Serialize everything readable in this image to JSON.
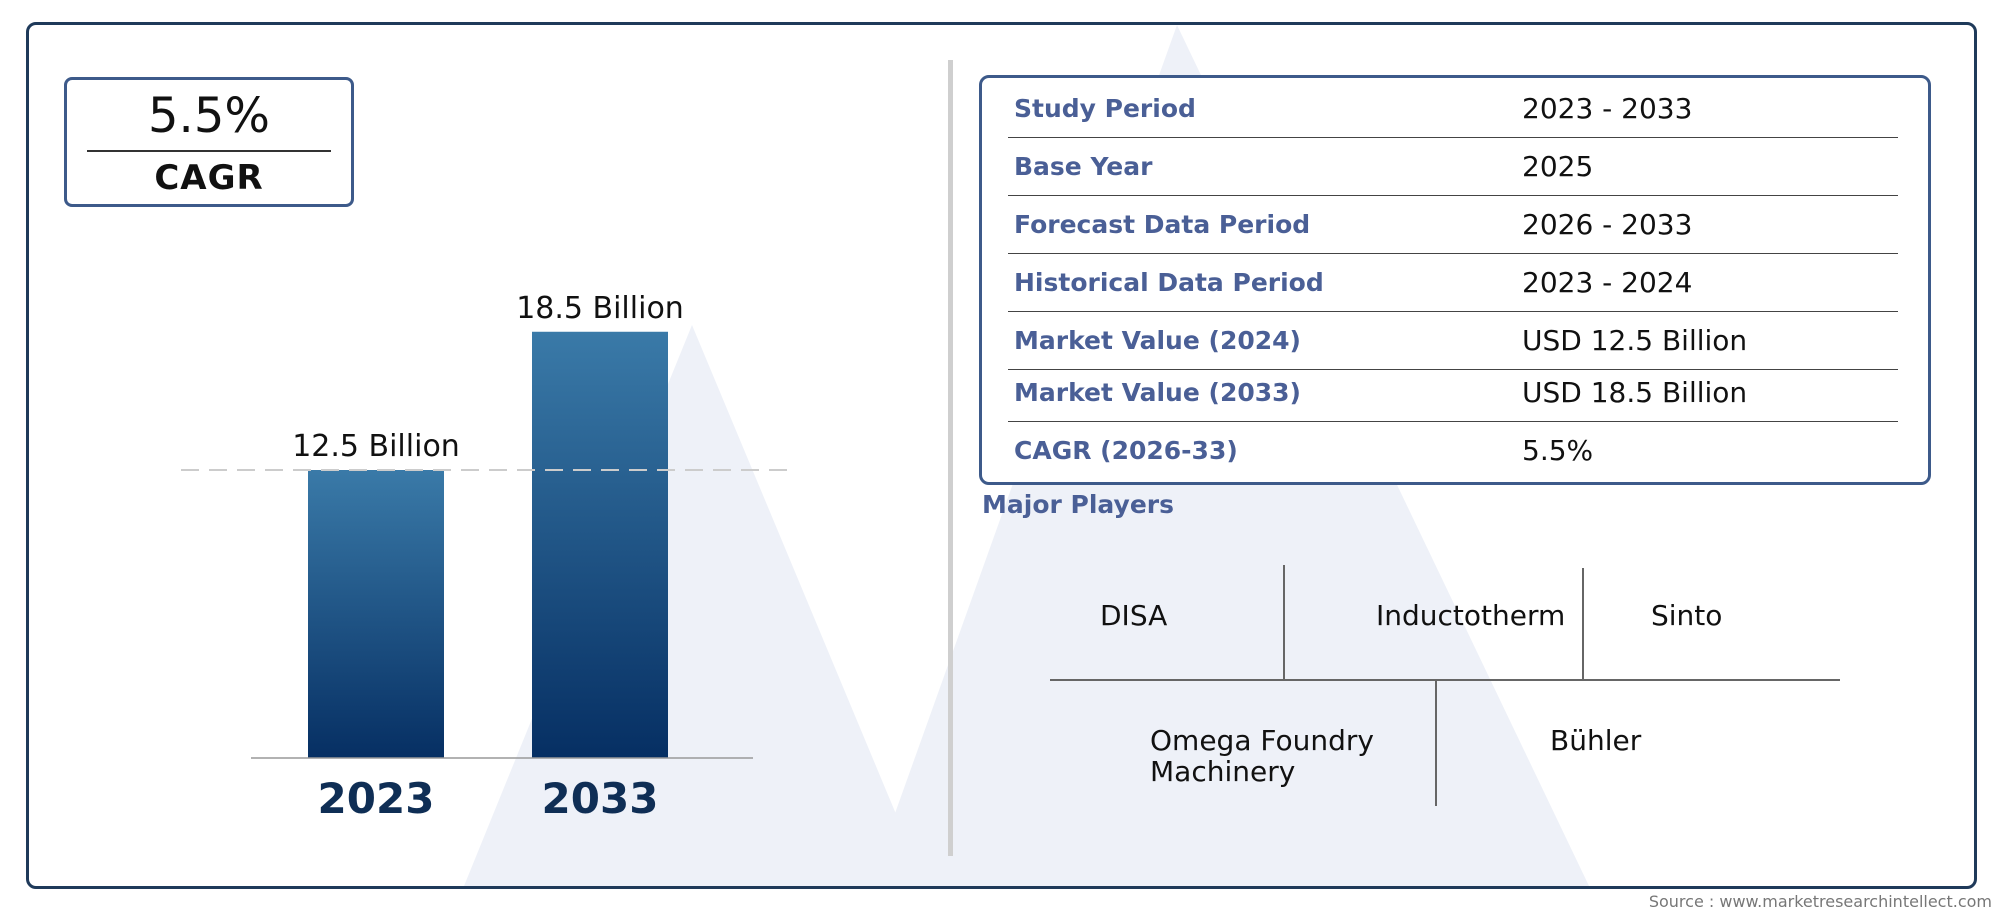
{
  "chart_data": {
    "type": "bar",
    "categories": [
      "2023",
      "2033"
    ],
    "values": [
      12.5,
      18.5
    ],
    "value_labels": [
      "12.5 Billion",
      "18.5 Billion"
    ],
    "colors": {
      "bar_top": "#3a7aa8",
      "bar_bottom": "#062f63",
      "category_text": "#0f2e55"
    }
  },
  "cagr": {
    "value": "5.5%",
    "label": "CAGR"
  },
  "info_table": [
    {
      "key": "Study Period",
      "value": "2023 - 2033"
    },
    {
      "key": "Base Year",
      "value": "2025"
    },
    {
      "key": "Forecast Data Period",
      "value": "2026 - 2033"
    },
    {
      "key": "Historical Data Period",
      "value": "2023 - 2024"
    },
    {
      "key": "Market Value (2024)",
      "value": "USD 12.5 Billion"
    },
    {
      "key": "Market Value (2033)",
      "value": "USD 18.5 Billion"
    },
    {
      "key": "CAGR (2026-33)",
      "value": "5.5%"
    }
  ],
  "major_players": {
    "title": "Major Players",
    "names": [
      "DISA",
      "Inductotherm",
      "Sinto",
      "Omega Foundry Machinery",
      "Bühler"
    ]
  },
  "source": "Source : www.marketresearchintellect.com",
  "colors": {
    "frame": "#1f3a5a",
    "box_border": "#3d5a8a",
    "label": "#4a5f96"
  }
}
